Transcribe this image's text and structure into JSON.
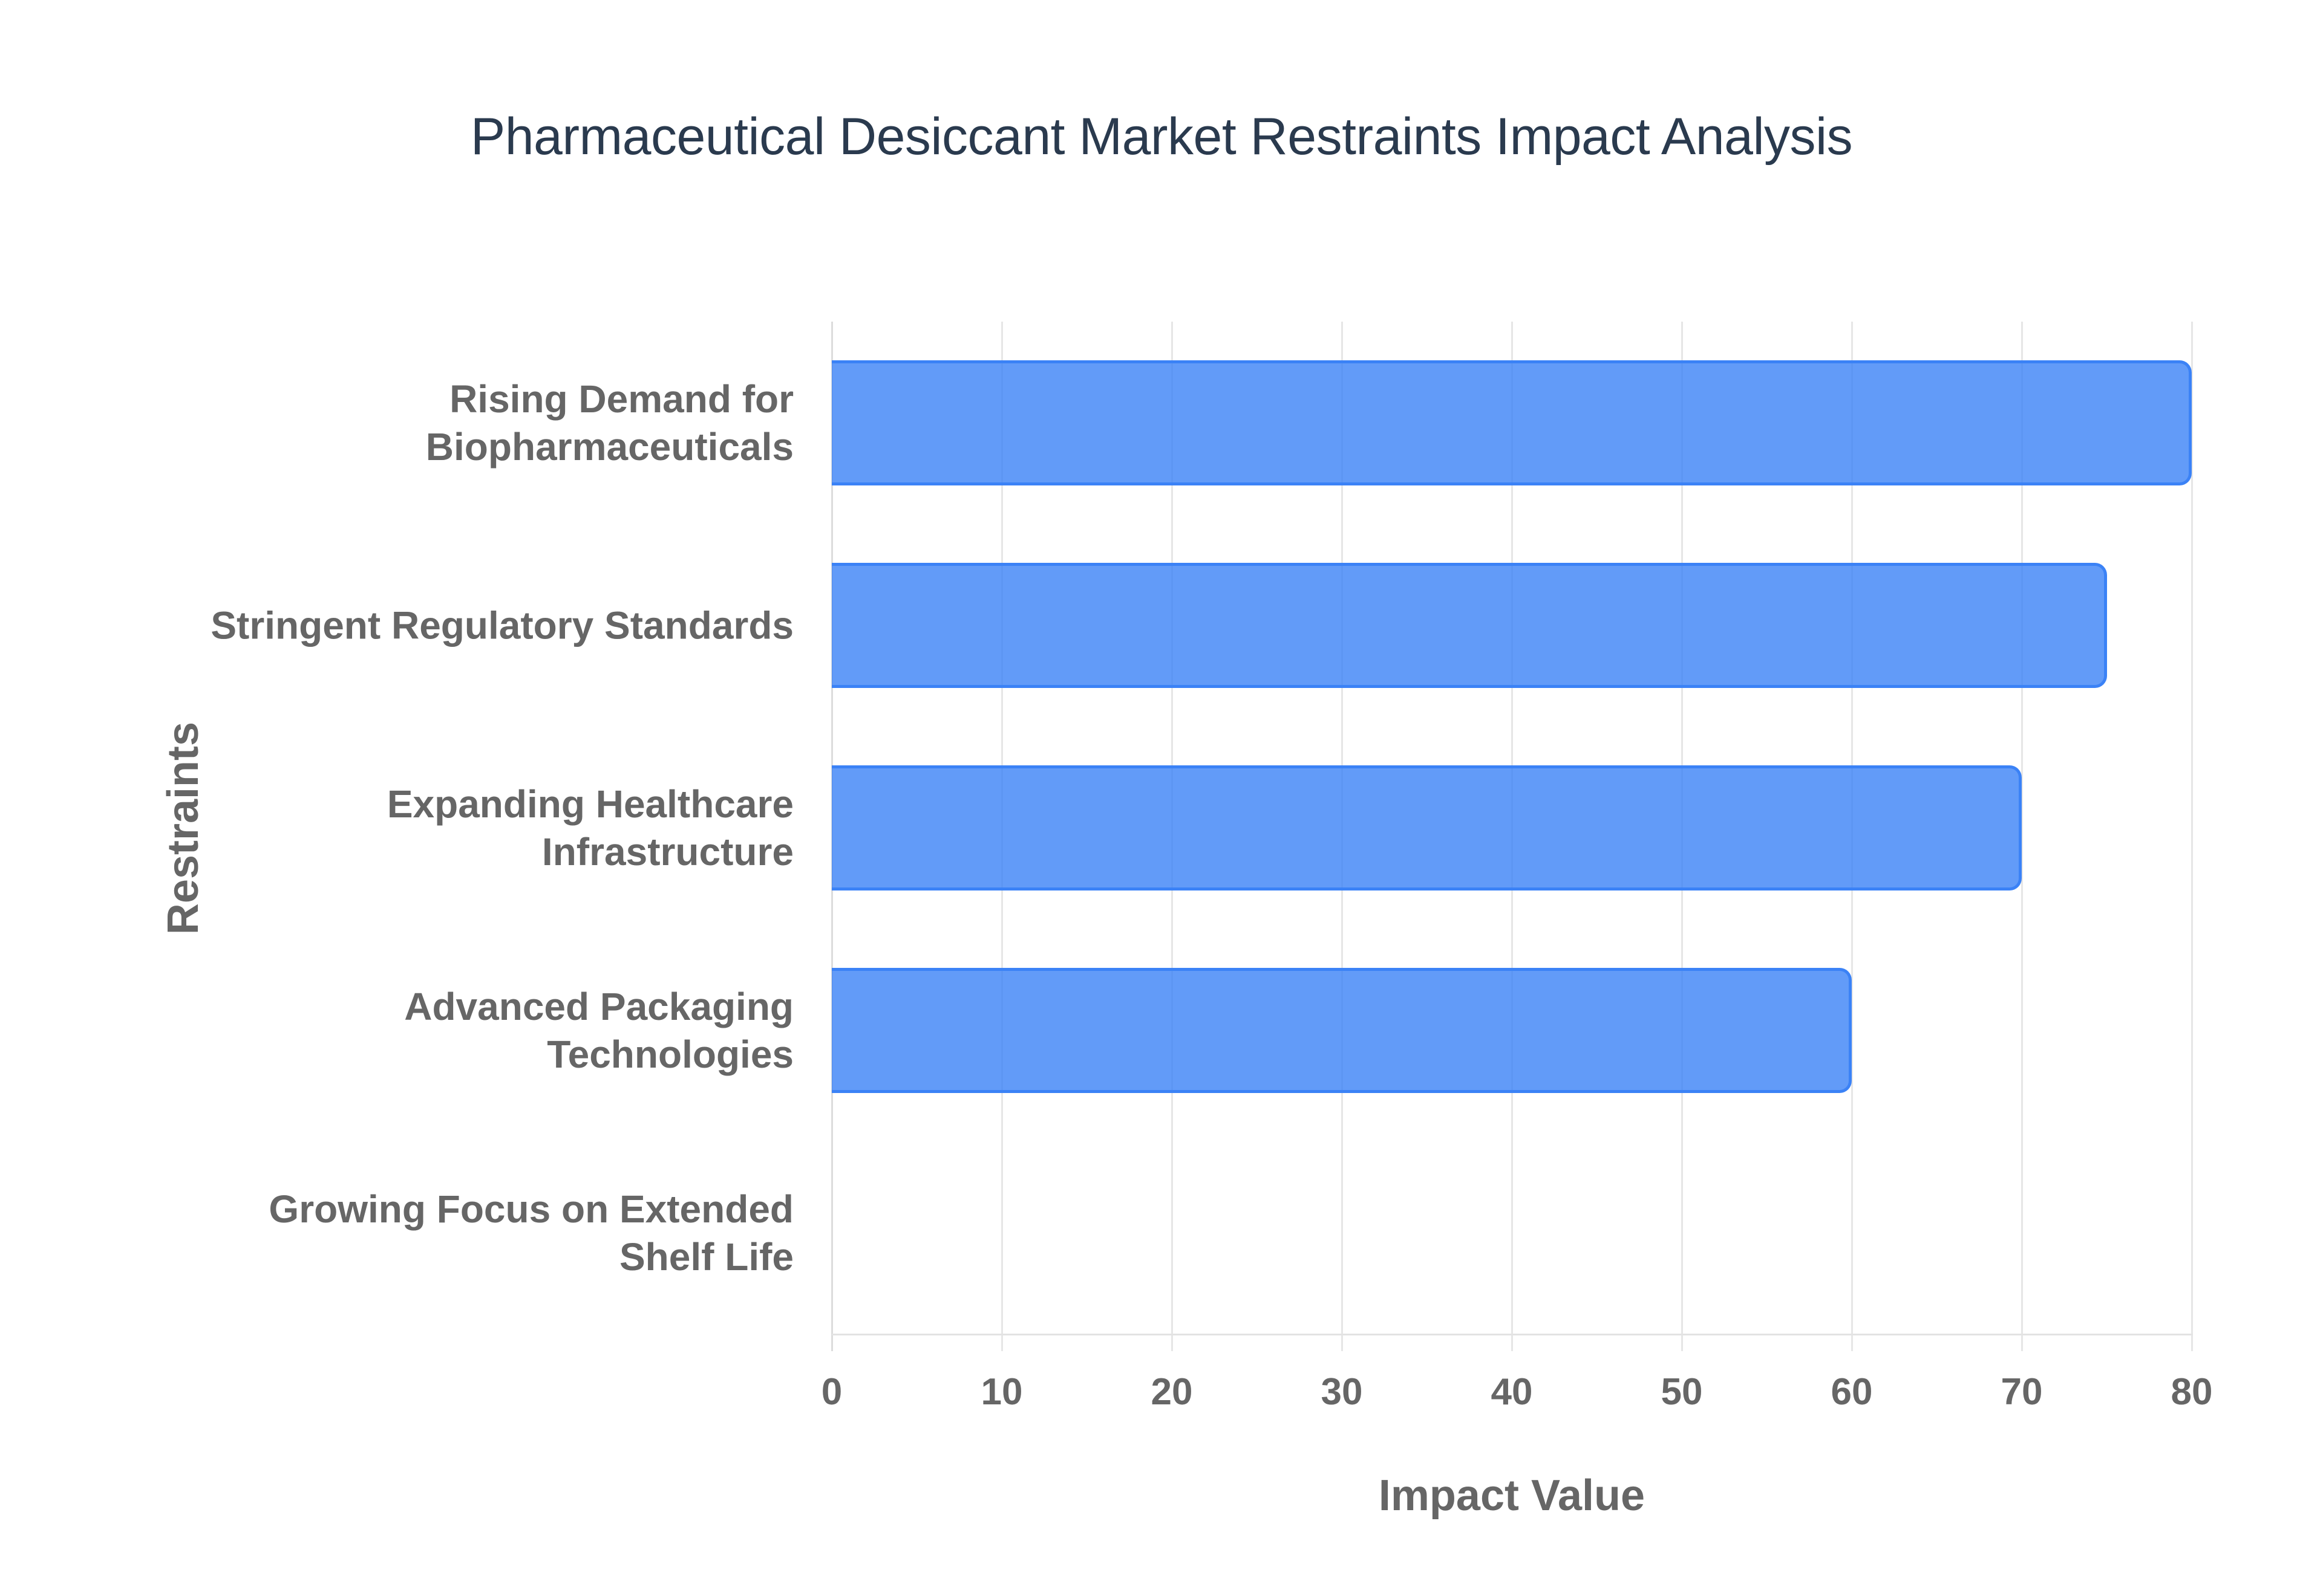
{
  "title": "Pharmaceutical Desiccant Market Restraints Impact Analysis",
  "colors": {
    "bar_fill": "rgba(59,130,246,0.8)",
    "bar_border": "#3b82f6",
    "title": "#2a3a4e",
    "axis_text": "#666666",
    "grid": "#e6e6e6"
  },
  "axes": {
    "x_title": "Impact Value",
    "y_title": "Restraints",
    "x_ticks": [
      "0",
      "10",
      "20",
      "30",
      "40",
      "50",
      "60",
      "70",
      "80"
    ]
  },
  "categories": [
    {
      "label": "Rising Demand for\nBiopharmaceuticals",
      "value": 80
    },
    {
      "label": "Stringent Regulatory Standards",
      "value": 75
    },
    {
      "label": "Expanding Healthcare\nInfrastructure",
      "value": 70
    },
    {
      "label": "Advanced Packaging\nTechnologies",
      "value": 60
    },
    {
      "label": "Growing Focus on Extended\nShelf Life",
      "value": 0
    }
  ],
  "chart_data": {
    "type": "bar",
    "orientation": "horizontal",
    "title": "Pharmaceutical Desiccant Market Restraints Impact Analysis",
    "xlabel": "Impact Value",
    "ylabel": "Restraints",
    "categories": [
      "Rising Demand for Biopharmaceuticals",
      "Stringent Regulatory Standards",
      "Expanding Healthcare Infrastructure",
      "Advanced Packaging Technologies",
      "Growing Focus on Extended Shelf Life"
    ],
    "values": [
      80,
      75,
      70,
      60,
      0
    ],
    "xlim": [
      0,
      80
    ],
    "x_ticks": [
      0,
      10,
      20,
      30,
      40,
      50,
      60,
      70,
      80
    ],
    "grid": true,
    "legend": null
  }
}
